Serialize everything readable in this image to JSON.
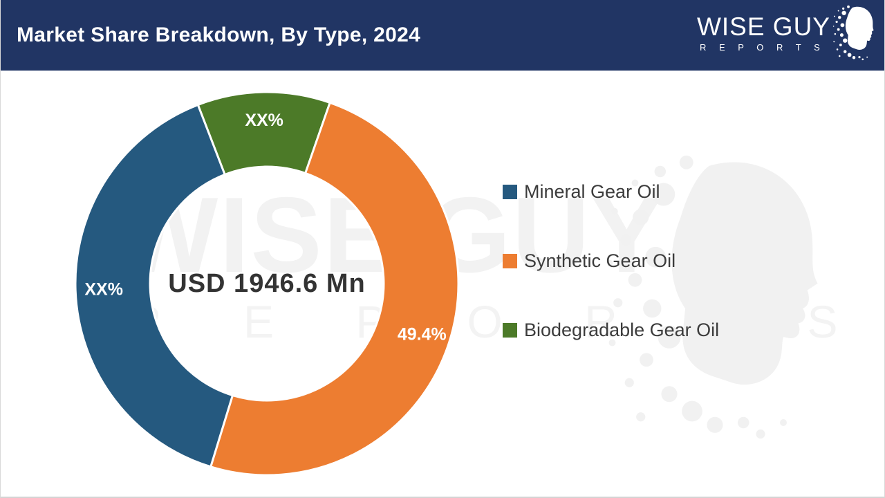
{
  "header": {
    "title": "Market Share Breakdown, By Type, 2024",
    "bg_color": "#213564",
    "logo": {
      "name": "WISE GUY",
      "subtitle": "R E P O R T S"
    }
  },
  "watermark": {
    "line1": "WISE GUY",
    "line2": "R E P O R T S"
  },
  "chart_data": {
    "type": "pie",
    "subtype": "donut",
    "title": "Market Share Breakdown, By Type, 2024",
    "center_label": "USD 1946.6 Mn",
    "legend_position": "right",
    "start_angle_deg": -21.1,
    "direction": "clockwise",
    "inner_radius_ratio": 0.61,
    "draw_order": [
      2,
      1,
      0
    ],
    "series": [
      {
        "name": "Mineral Gear Oil",
        "value_pct": 39.4,
        "display_label": "XX%",
        "color": "#25597F"
      },
      {
        "name": "Synthetic Gear Oil",
        "value_pct": 49.4,
        "display_label": "49.4%",
        "color": "#ED7D31"
      },
      {
        "name": "Biodegradable Gear Oil",
        "value_pct": 11.2,
        "display_label": "XX%",
        "color": "#4C7A28"
      }
    ]
  },
  "colors": {
    "header_bg": "#213564",
    "page_border": "#D9D9D9",
    "center_text": "#333333",
    "legend_text": "#3C3C3C",
    "watermark": "#F2F2F2",
    "slice_separator": "#FFFFFF"
  }
}
